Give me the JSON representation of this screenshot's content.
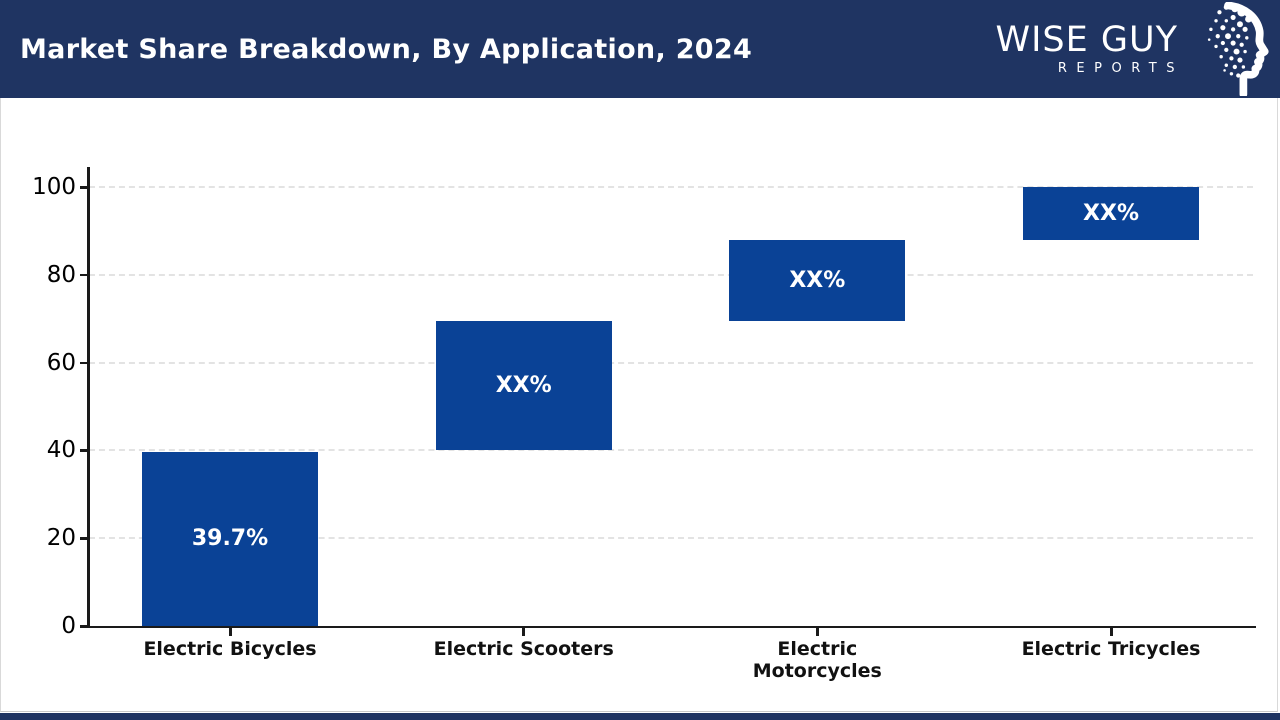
{
  "header": {
    "title": "Market Share Breakdown, By Application, 2024",
    "logo_line1": "WISE GUY",
    "logo_line2": "REPORTS"
  },
  "watermark": {
    "line1": "WISE GUY",
    "line2": "REPORTS"
  },
  "colors": {
    "header_bg": "#1f3462",
    "bar": "#0a4296",
    "grid": "#e3e3e3",
    "axis": "#1a1a1a",
    "bar_label_text": "#ffffff",
    "watermark": "#f1f1f1"
  },
  "chart_data": {
    "type": "bar",
    "variant": "waterfall",
    "title": "Market Share Breakdown, By Application, 2024",
    "categories": [
      "Electric Bicycles",
      "Electric Scooters",
      "Electric Motorcycles",
      "Electric Tricycles"
    ],
    "segments": [
      {
        "category": "Electric Bicycles",
        "start": 0,
        "end": 39.7,
        "label": "39.7%"
      },
      {
        "category": "Electric Scooters",
        "start": 40,
        "end": 69.5,
        "label": "XX%"
      },
      {
        "category": "Electric Motorcycles",
        "start": 69.5,
        "end": 88,
        "label": "XX%"
      },
      {
        "category": "Electric Tricycles",
        "start": 88,
        "end": 100,
        "label": "XX%"
      }
    ],
    "xlabel": "",
    "ylabel": "",
    "yticks": [
      0,
      20,
      40,
      60,
      80,
      100
    ],
    "ylim": [
      0,
      105
    ],
    "grid": "horizontal-dashed",
    "legend": "none"
  }
}
